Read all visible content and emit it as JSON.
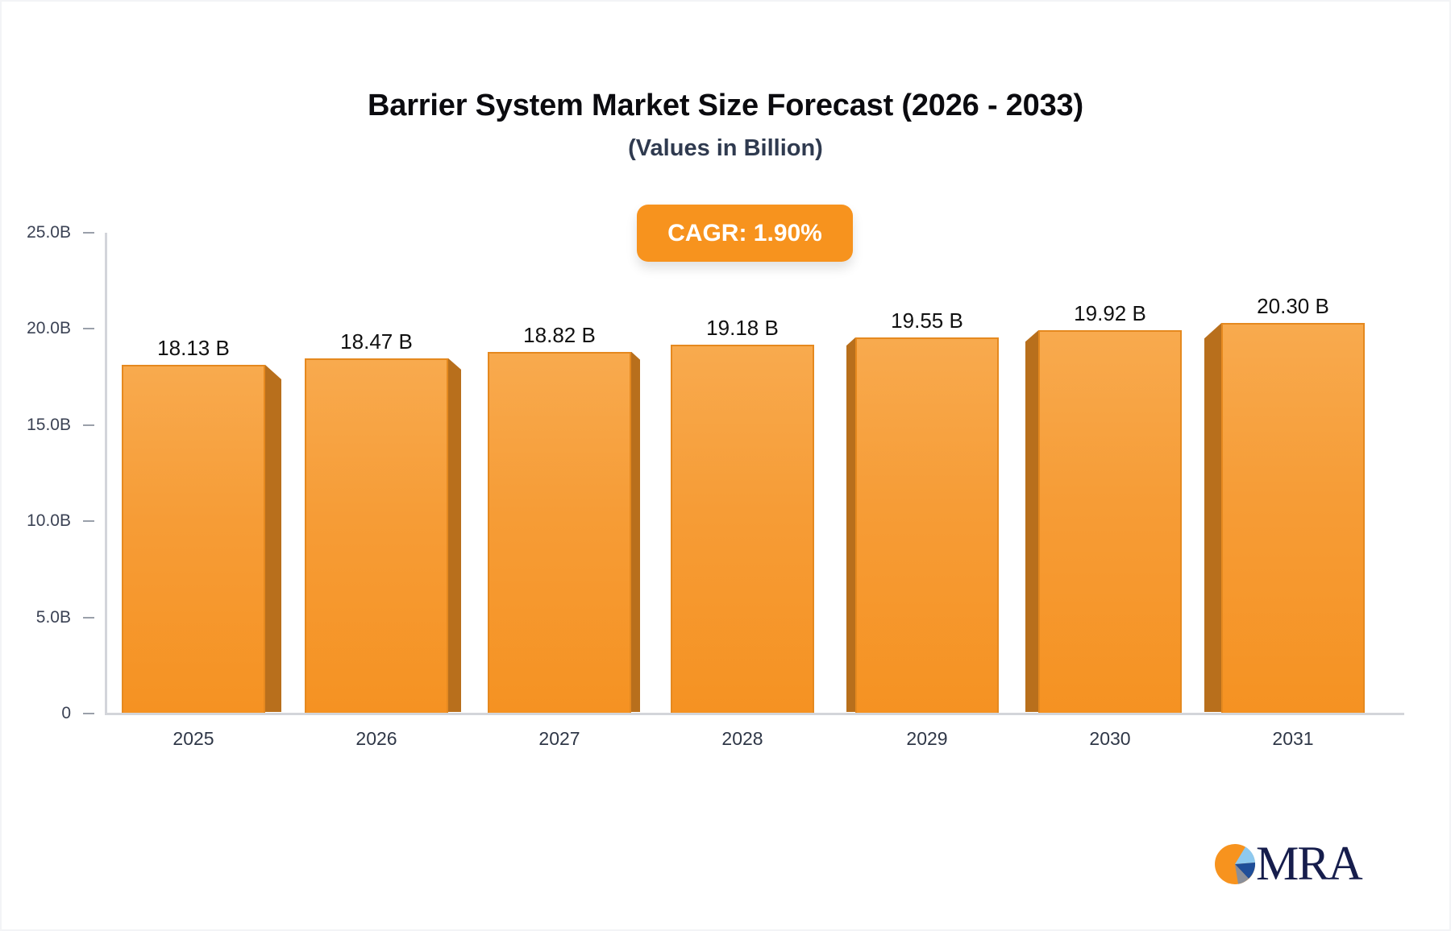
{
  "title": "Barrier System Market Size Forecast (2026 - 2033)",
  "subtitle": "(Values in Billion)",
  "badge": {
    "label": "CAGR: 1.90%"
  },
  "logo": {
    "text": "MRA",
    "icon": "pie-chart-icon"
  },
  "colors": {
    "bar_front": "#f7a035",
    "bar_side": "#b86f1c",
    "badge": "#f7931e",
    "axis": "#d3d5da"
  },
  "y_axis": {
    "ticks": [
      "25.0B",
      "20.0B",
      "15.0B",
      "10.0B",
      "5.0B",
      "0"
    ]
  },
  "bars": [
    {
      "year": "2025",
      "label": "18.13 B"
    },
    {
      "year": "2026",
      "label": "18.47 B"
    },
    {
      "year": "2027",
      "label": "18.82 B"
    },
    {
      "year": "2028",
      "label": "19.18 B"
    },
    {
      "year": "2029",
      "label": "19.55 B"
    },
    {
      "year": "2030",
      "label": "19.92 B"
    },
    {
      "year": "2031",
      "label": "20.30 B"
    }
  ],
  "chart_data": {
    "type": "bar",
    "title": "Barrier System Market Size Forecast (2026 - 2033)",
    "subtitle": "(Values in Billion)",
    "categories": [
      "2025",
      "2026",
      "2027",
      "2028",
      "2029",
      "2030",
      "2031"
    ],
    "values": [
      18.13,
      18.47,
      18.82,
      19.18,
      19.55,
      19.92,
      20.3
    ],
    "data_labels": [
      "18.13 B",
      "18.47 B",
      "18.82 B",
      "19.18 B",
      "19.55 B",
      "19.92 B",
      "20.30 B"
    ],
    "annotation": "CAGR: 1.90%",
    "xlabel": "",
    "ylabel": "",
    "ylim": [
      0,
      25
    ],
    "yticks": [
      0,
      5,
      10,
      15,
      20,
      25
    ],
    "ytick_labels": [
      "0",
      "5.0B",
      "10.0B",
      "15.0B",
      "20.0B",
      "25.0B"
    ],
    "grid": false,
    "legend": null,
    "style": "3d-bar"
  }
}
